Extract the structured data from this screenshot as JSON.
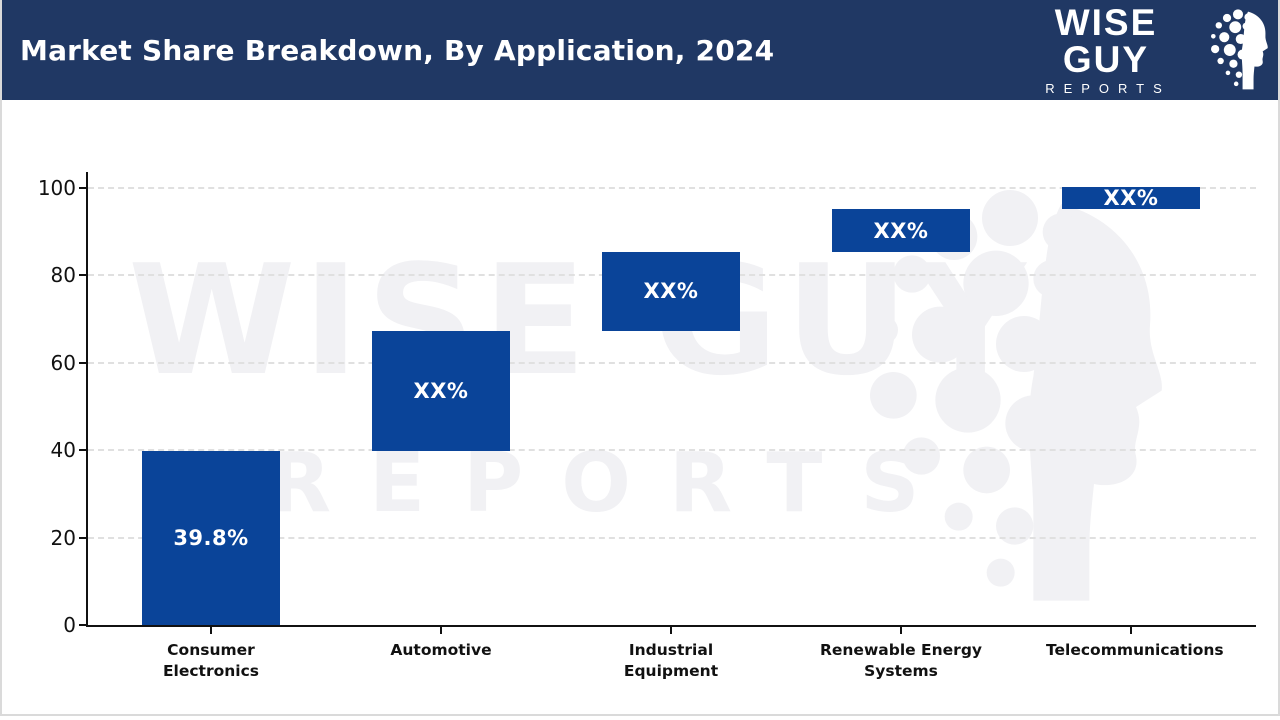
{
  "header": {
    "title": "Market Share Breakdown, By Application, 2024",
    "bg_color": "#203864",
    "logo_line1": "WISE GUY",
    "logo_line2": "REPORTS"
  },
  "watermark": {
    "line1": "WISE GUY",
    "line2": "REPORTS"
  },
  "chart_data": {
    "type": "bar",
    "variant": "waterfall",
    "title": "Market Share Breakdown, By Application, 2024",
    "xlabel": "",
    "ylabel": "",
    "categories": [
      "Consumer Electronics",
      "Automotive",
      "Industrial Equipment",
      "Renewable Energy Systems",
      "Telecommunications"
    ],
    "segments": [
      {
        "category": "Consumer Electronics",
        "start": 0,
        "end": 39.8,
        "label": "39.8%"
      },
      {
        "category": "Automotive",
        "start": 39.8,
        "end": 67.3,
        "label": "XX%"
      },
      {
        "category": "Industrial Equipment",
        "start": 67.3,
        "end": 85.2,
        "label": "XX%"
      },
      {
        "category": "Renewable Energy Systems",
        "start": 85.2,
        "end": 95.0,
        "label": "XX%"
      },
      {
        "category": "Telecommunications",
        "start": 95.0,
        "end": 100.1,
        "label": "XX%"
      }
    ],
    "y_ticks": [
      0,
      20,
      40,
      60,
      80,
      100
    ],
    "ylim": [
      0,
      103.5
    ],
    "grid": "horizontal-dashed",
    "legend": "none",
    "bar_color": "#0a4499",
    "value_label_color": "#ffffff"
  }
}
